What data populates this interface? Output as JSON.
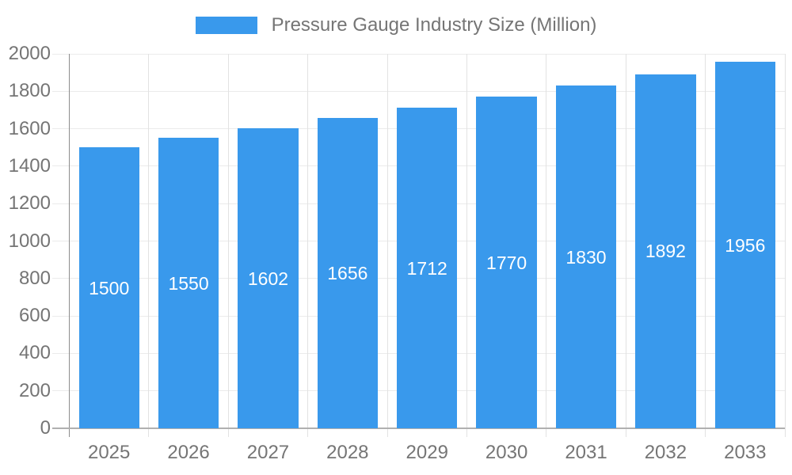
{
  "legend": {
    "label": "Pressure Gauge Industry Size (Million)"
  },
  "chart_data": {
    "type": "bar",
    "title": "Pressure Gauge Industry Size (Million)",
    "categories": [
      "2025",
      "2026",
      "2027",
      "2028",
      "2029",
      "2030",
      "2031",
      "2032",
      "2033"
    ],
    "values": [
      1500,
      1550,
      1602,
      1656,
      1712,
      1770,
      1830,
      1892,
      1956
    ],
    "value_labels": [
      "1500",
      "1550",
      "1602",
      "1656",
      "1712",
      "1770",
      "1830",
      "1892",
      "1956"
    ],
    "xlabel": "",
    "ylabel": "",
    "ylim": [
      0,
      2000
    ],
    "yticks": [
      0,
      200,
      400,
      600,
      800,
      1000,
      1200,
      1400,
      1600,
      1800,
      2000
    ],
    "grid": true,
    "legend_position": "top"
  },
  "colors": {
    "bar": "#3999EC",
    "horizontal_grid": "#ebebeb",
    "vertical_grid": "#e2e2e2",
    "y_axis_line": "#8c8c8c",
    "baseline": "#b0b0b0",
    "axis_text": "#757575",
    "legend_text": "#757575",
    "value_text": "#ffffff",
    "background": "#ffffff"
  }
}
